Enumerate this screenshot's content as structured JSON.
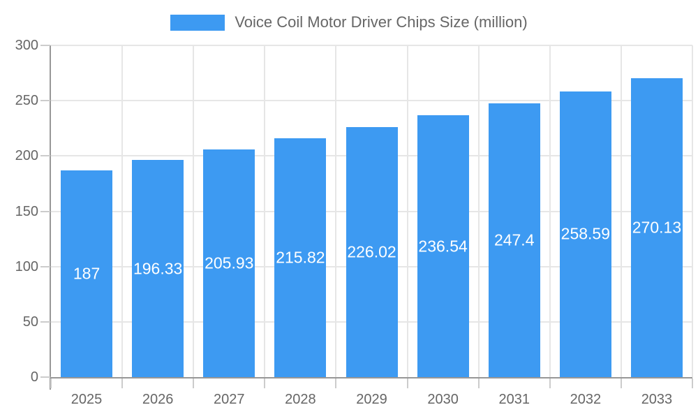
{
  "colors": {
    "bar": "#3D9AF2",
    "grid": "#E6E6E6",
    "axis": "#979797",
    "minor_tick": "#CCCCCC",
    "tick_text": "#666666",
    "title_text": "#666666",
    "value_label_text": "#FFFFFF"
  },
  "chart_data": {
    "type": "bar",
    "title": "Voice Coil Motor Driver Chips Size (million)",
    "categories": [
      "2025",
      "2026",
      "2027",
      "2028",
      "2029",
      "2030",
      "2031",
      "2032",
      "2033"
    ],
    "values": [
      187,
      196.33,
      205.93,
      215.82,
      226.02,
      236.54,
      247.4,
      258.59,
      270.13
    ],
    "value_labels": [
      "187",
      "196.33",
      "205.93",
      "215.82",
      "226.02",
      "236.54",
      "247.4",
      "258.59",
      "270.13"
    ],
    "xlabel": "",
    "ylabel": "",
    "ylim": [
      0,
      300
    ],
    "yticks": [
      0,
      50,
      100,
      150,
      200,
      250,
      300
    ],
    "ytick_labels": [
      "0",
      "50",
      "100",
      "150",
      "200",
      "250",
      "300"
    ],
    "grid": true,
    "legend_position": "top",
    "value_labels_inside_bars": true
  }
}
